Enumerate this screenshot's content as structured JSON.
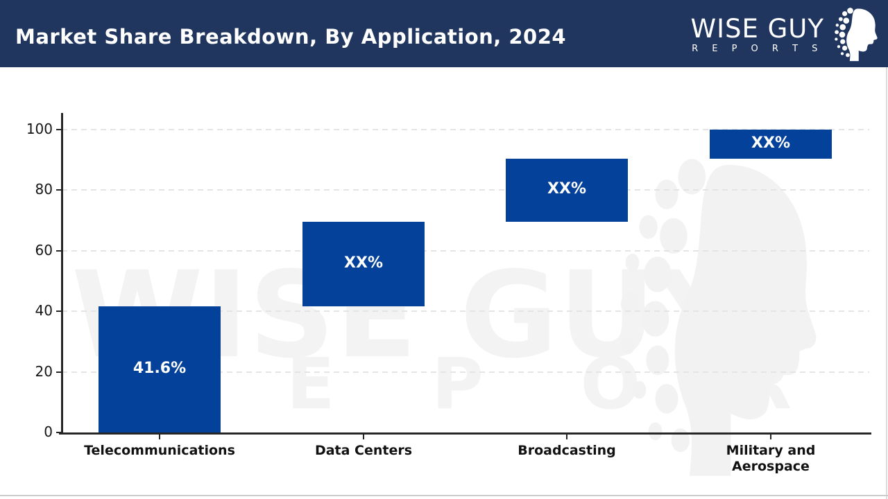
{
  "header": {
    "title": "Market Share Breakdown, By Application, 2024",
    "logo": {
      "line1": "WISE GUY",
      "line2": "R E P O R T S"
    },
    "bg_color": "#20365f"
  },
  "watermark": {
    "line1": "WISE GUY",
    "line2": "R E P O R T S"
  },
  "chart_data": {
    "type": "bar",
    "subtype": "waterfall",
    "title": "Market Share Breakdown, By Application, 2024",
    "categories": [
      "Telecommunications",
      "Data Centers",
      "Broadcasting",
      "Military and\nAerospace"
    ],
    "segments": [
      {
        "category": "Telecommunications",
        "start": 0,
        "end": 41.6,
        "label": "41.6%"
      },
      {
        "category": "Data Centers",
        "start": 41.6,
        "end": 69.6,
        "label": "XX%"
      },
      {
        "category": "Broadcasting",
        "start": 69.6,
        "end": 90.4,
        "label": "XX%"
      },
      {
        "category": "Military and\nAerospace",
        "start": 90.4,
        "end": 100,
        "label": "XX%"
      }
    ],
    "yticks": [
      0,
      20,
      40,
      60,
      80,
      100
    ],
    "ylim": [
      0,
      105
    ],
    "xlabel": "",
    "ylabel": "",
    "legend": "none",
    "grid": {
      "horizontal": true,
      "style": "dashed"
    },
    "colors": {
      "bar": "#04419a",
      "bar_label": "#ffffff",
      "axis": "#262626",
      "grid": "#e4e4e4",
      "tick_text": "#141414",
      "watermark": "#f3f3f3"
    }
  }
}
